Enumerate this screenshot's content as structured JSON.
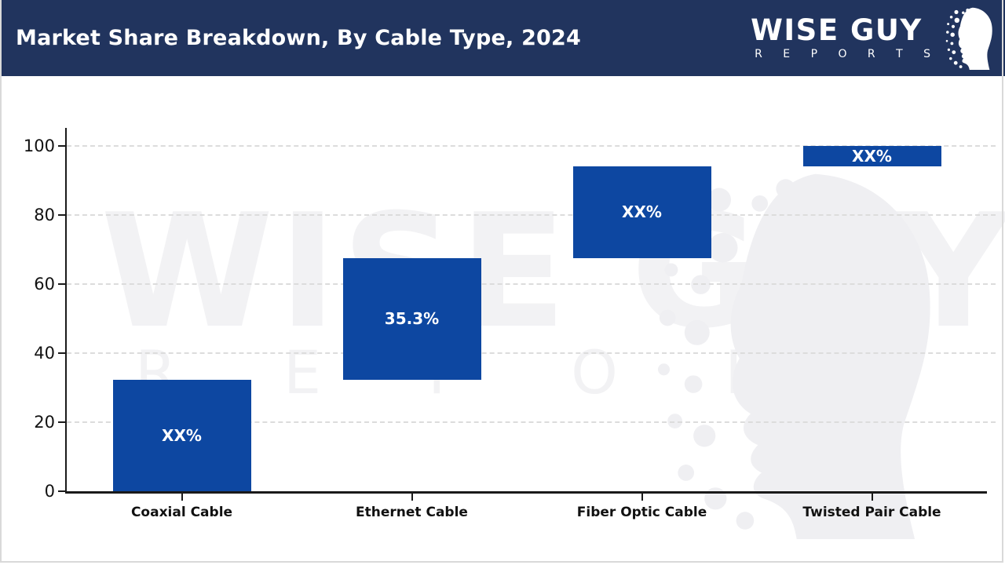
{
  "header": {
    "title": "Market Share Breakdown, By Cable Type, 2024",
    "brand": {
      "line1": "WISE GUY",
      "line2": "R E P O R T S"
    }
  },
  "watermark": {
    "line1": "WISE GUY",
    "line2": "R E P O R T S"
  },
  "colors": {
    "header_bg": "#21345E",
    "bar": "#0D47A1",
    "bar_label": "#FFFFFF",
    "axis": "#1A1A1A",
    "gridline": "#DCDCDC",
    "title_text": "#FFFFFF",
    "watermark": "#F2F2F4"
  },
  "chart_data": {
    "type": "bar",
    "subtype": "waterfall",
    "title": "Market Share Breakdown, By Cable Type, 2024",
    "xlabel": "",
    "ylabel": "",
    "categories": [
      "Coaxial Cable",
      "Ethernet Cable",
      "Fiber Optic Cable",
      "Twisted Pair Cable"
    ],
    "bars": [
      {
        "category": "Coaxial Cable",
        "start": 0,
        "end": 32.3,
        "value": 32.3,
        "label": "XX%"
      },
      {
        "category": "Ethernet Cable",
        "start": 32.3,
        "end": 67.6,
        "value": 35.3,
        "label": "35.3%"
      },
      {
        "category": "Fiber Optic Cable",
        "start": 67.6,
        "end": 94.1,
        "value": 26.5,
        "label": "XX%"
      },
      {
        "category": "Twisted Pair Cable",
        "start": 94.1,
        "end": 100,
        "value": 5.9,
        "label": "XX%"
      }
    ],
    "yticks": [
      0,
      20,
      40,
      60,
      80,
      100
    ],
    "ylim": [
      0,
      105
    ],
    "grid": "horizontal-dashed",
    "legend": "none"
  }
}
